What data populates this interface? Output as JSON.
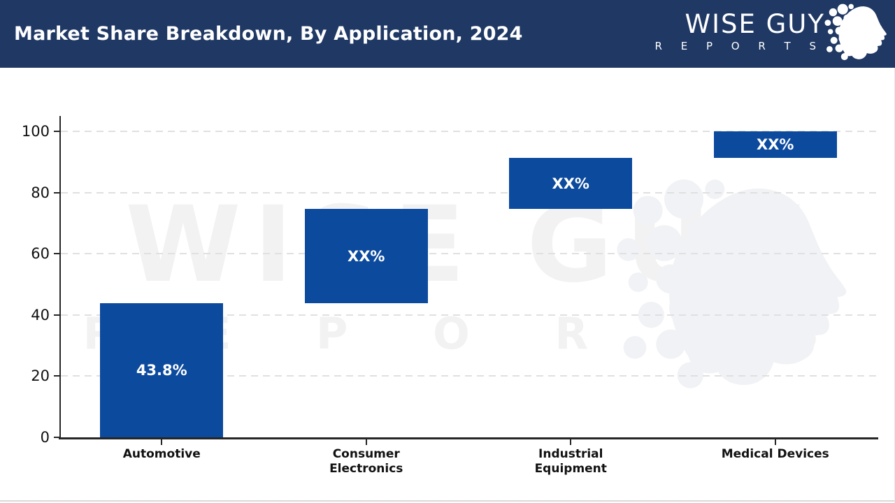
{
  "header": {
    "title": "Market Share Breakdown, By Application, 2024",
    "background": "#1f3864",
    "logo": {
      "primary": "WISE GUY",
      "secondary": "R E P O R T S",
      "face_icon": "dotted-head-profile"
    }
  },
  "watermark": {
    "line1": "WISE GUY",
    "line2": "R E P O R T S",
    "color": "#f2f2f2"
  },
  "chart_data": {
    "type": "bar",
    "variant": "waterfall",
    "title": "Market Share Breakdown, By Application, 2024",
    "categories": [
      "Automotive",
      "Consumer Electronics",
      "Industrial Equipment",
      "Medical Devices"
    ],
    "category_lines": [
      [
        "Automotive"
      ],
      [
        "Consumer",
        "Electronics"
      ],
      [
        "Industrial",
        "Equipment"
      ],
      [
        "Medical Devices"
      ]
    ],
    "series": [
      {
        "name": "Market share (%)",
        "segments": [
          {
            "category": "Automotive",
            "start": 0,
            "end": 43.8,
            "label": "43.8%"
          },
          {
            "category": "Consumer Electronics",
            "start": 43.8,
            "end": 74.6,
            "label": "XX%"
          },
          {
            "category": "Industrial Equipment",
            "start": 74.6,
            "end": 91.2,
            "label": "XX%"
          },
          {
            "category": "Medical Devices",
            "start": 91.2,
            "end": 100,
            "label": "XX%"
          }
        ]
      }
    ],
    "xlabel": "",
    "ylabel": "",
    "ylim": [
      0,
      105
    ],
    "yticks": [
      0,
      20,
      40,
      60,
      80,
      100
    ],
    "grid": "horizontal-dashed",
    "legend": "none",
    "bar_color": "#0c4a9e",
    "bar_label_color": "#ffffff",
    "axis_color": "#262626",
    "grid_color": "#e0e0e0"
  }
}
